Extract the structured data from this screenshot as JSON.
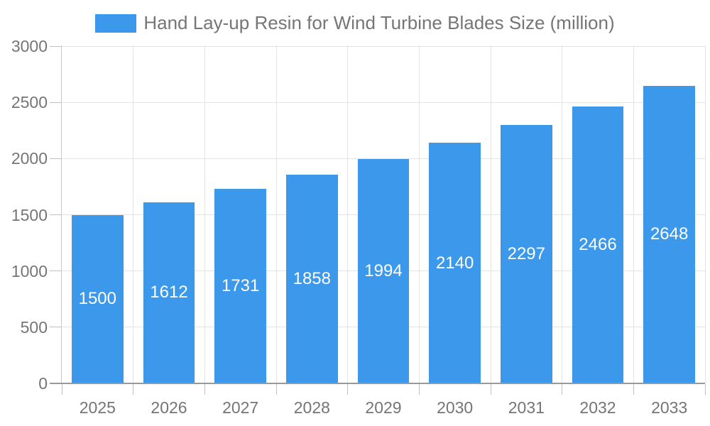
{
  "chart_data": {
    "type": "bar",
    "title": "Hand Lay-up Resin for Wind Turbine Blades Size (million)",
    "legend": {
      "position": "top",
      "entries": [
        "Hand Lay-up Resin for Wind Turbine Blades Size (million)"
      ]
    },
    "categories": [
      "2025",
      "2026",
      "2027",
      "2028",
      "2029",
      "2030",
      "2031",
      "2032",
      "2033"
    ],
    "values": [
      1500,
      1612,
      1731,
      1858,
      1994,
      2140,
      2297,
      2466,
      2648
    ],
    "xlabel": "",
    "ylabel": "",
    "ylim": [
      0,
      3000
    ],
    "yticks": [
      0,
      500,
      1000,
      1500,
      2000,
      2500,
      3000
    ],
    "grid": true,
    "value_labels_position": "inside-center",
    "colors": {
      "bar": "#3b98eb",
      "title_text": "#757575",
      "axis_text": "#757575",
      "value_text": "#ffffff",
      "gridline": "#e3e3e3",
      "y_axis_line": "#c9c9c9",
      "x_axis_line": "#999999",
      "tick": "#c0c0c0",
      "background": "#ffffff"
    }
  }
}
